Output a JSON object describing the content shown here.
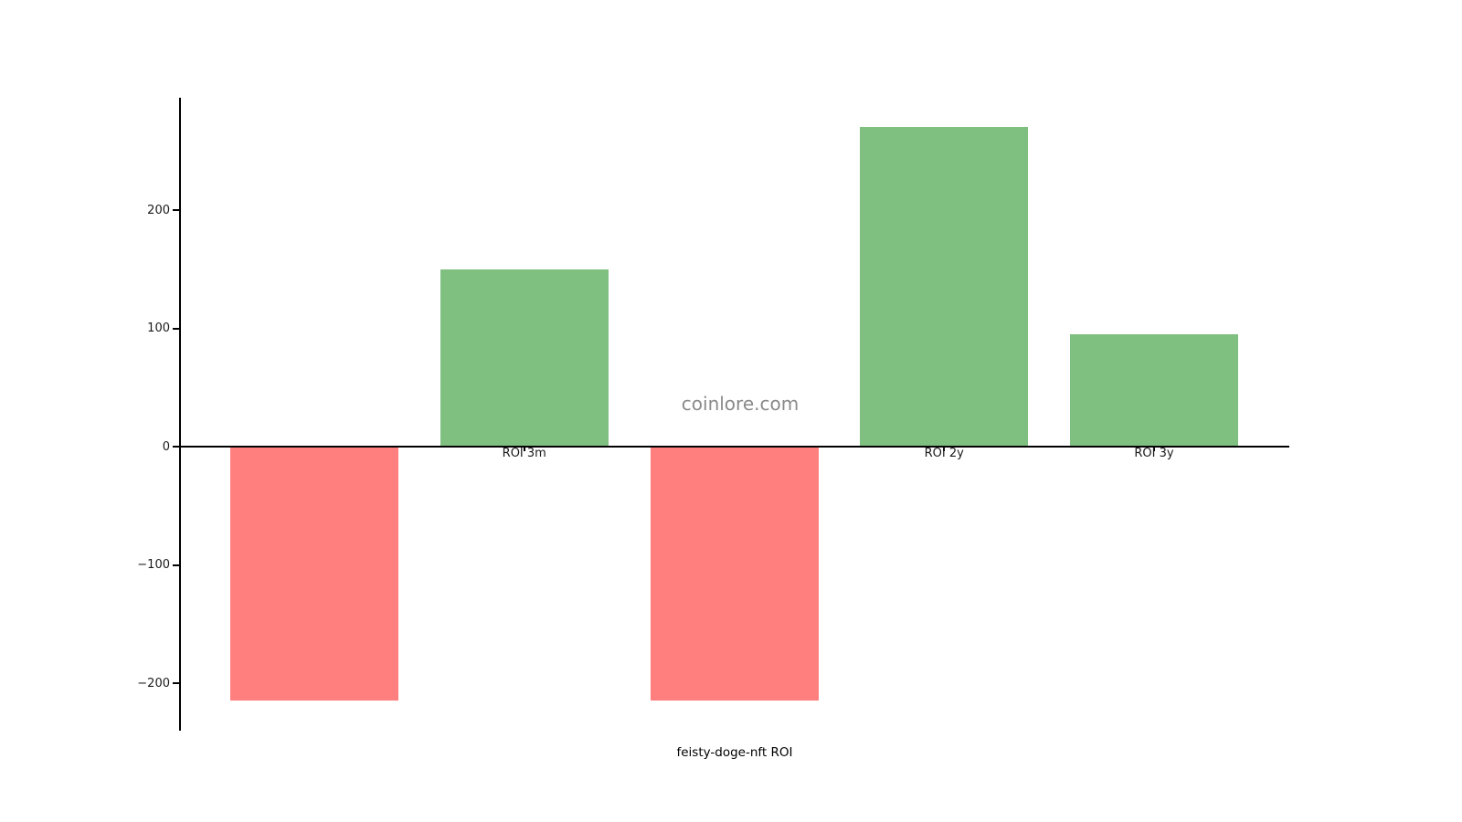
{
  "watermark": "coinlore.com",
  "figure_title": "feisty-doge-nft ROI",
  "colors": {
    "positive_bar": "#7fbf7f",
    "negative_bar": "#ff7f7f",
    "axis": "#000000",
    "tick_label": "#1a1a1a",
    "watermark": "#8a8a8a",
    "background": "#ffffff"
  },
  "chart_data": {
    "type": "bar",
    "title": "feisty-doge-nft ROI",
    "watermark": "coinlore.com",
    "categories": [
      "",
      "ROI 3m",
      "",
      "ROI 2y",
      "ROI 3y"
    ],
    "values": [
      -215,
      150,
      -215,
      270,
      95
    ],
    "bar_colors": [
      "#ff7f7f",
      "#7fbf7f",
      "#ff7f7f",
      "#7fbf7f",
      "#7fbf7f"
    ],
    "series": [
      {
        "name": "feisty-doge-nft ROI",
        "values": [
          -215,
          150,
          -215,
          270,
          95
        ]
      }
    ],
    "xlabel": "",
    "ylabel": "",
    "y_ticks": [
      200,
      100,
      0,
      -100,
      -200
    ],
    "y_tick_labels": [
      "200",
      "100",
      "0",
      "−100",
      "−200"
    ],
    "ylim": [
      -240,
      295
    ],
    "grid": false,
    "legend_position": "none",
    "baseline": 0,
    "notes": "negative bars are drawn over their category tick labels, hiding them"
  }
}
